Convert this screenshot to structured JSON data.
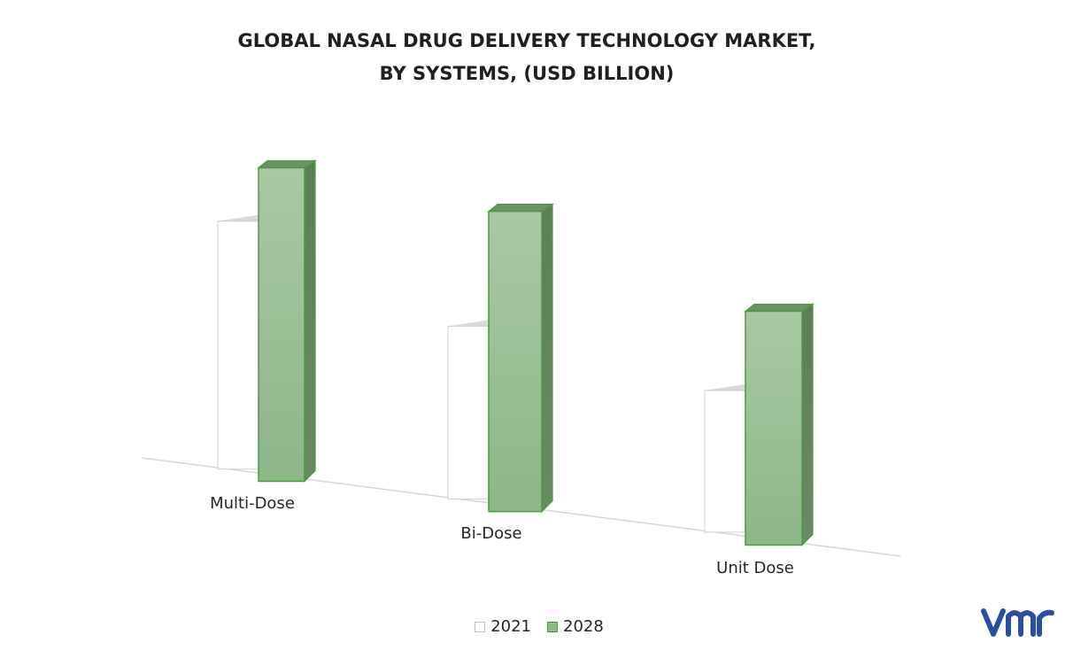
{
  "chart_data": {
    "type": "bar",
    "title_lines": [
      "GLOBAL NASAL DRUG DELIVERY TECHNOLOGY  MARKET,",
      "BY SYSTEMS, (USD BILLION)"
    ],
    "categories": [
      "Multi-Dose",
      "Bi-Dose",
      "Unit Dose"
    ],
    "series": [
      {
        "name": "2021",
        "values": [
          2.8,
          1.95,
          1.6
        ],
        "color": "#ffffff",
        "stroke": "#d0d0d0"
      },
      {
        "name": "2028",
        "values": [
          3.5,
          3.35,
          2.6
        ],
        "color": "#8fb98a",
        "stroke": "#4e9a42"
      }
    ],
    "ylim": [
      0,
      4
    ],
    "grid": false,
    "legend_position": "bottom",
    "style": "3d-column"
  },
  "branding": {
    "logo_icon": "vmr-logo-icon",
    "logo_color": "#2b4ea2"
  }
}
